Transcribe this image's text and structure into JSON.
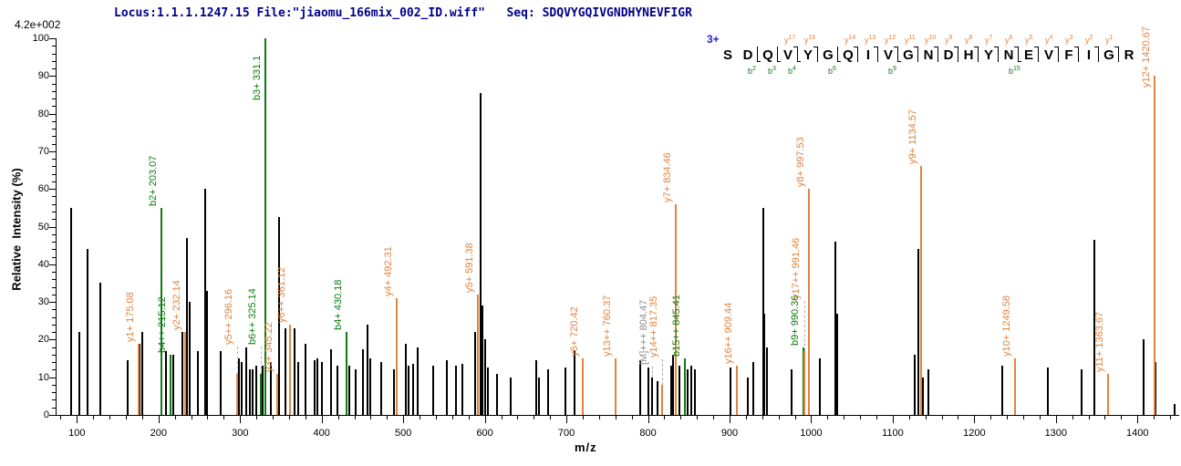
{
  "header": {
    "title_line": "Locus:1.1.1.1247.15 File:\"jiaomu_166mix_002_ID.wiff\"   Seq: SDQVYGQIVGNDHYNEVFIGR",
    "intensity_scale": "4.2e+002"
  },
  "colors": {
    "y_ion": "#E2833E",
    "b_ion": "#0E7C12",
    "precursor": "#8C8C8C",
    "peak": "#000000",
    "header_text": "#00008B",
    "charge_text": "#2222CC"
  },
  "sequence_ladder": {
    "charge": "3+",
    "residues": [
      "S",
      "D",
      "Q",
      "V",
      "Y",
      "G",
      "Q",
      "I",
      "V",
      "G",
      "N",
      "D",
      "H",
      "Y",
      "N",
      "E",
      "V",
      "F",
      "I",
      "G",
      "R"
    ],
    "y_ions": [
      {
        "after": 4,
        "ion": "y",
        "num": "17"
      },
      {
        "after": 5,
        "ion": "y",
        "num": "16"
      },
      {
        "after": 7,
        "ion": "y",
        "num": "14"
      },
      {
        "after": 8,
        "ion": "y",
        "num": "13"
      },
      {
        "after": 9,
        "ion": "y",
        "num": "12"
      },
      {
        "after": 10,
        "ion": "y",
        "num": "11"
      },
      {
        "after": 11,
        "ion": "y",
        "num": "10"
      },
      {
        "after": 12,
        "ion": "y",
        "num": "9"
      },
      {
        "after": 13,
        "ion": "y",
        "num": "8"
      },
      {
        "after": 14,
        "ion": "y",
        "num": "7"
      },
      {
        "after": 15,
        "ion": "y",
        "num": "6"
      },
      {
        "after": 16,
        "ion": "y",
        "num": "5"
      },
      {
        "after": 17,
        "ion": "y",
        "num": "4"
      },
      {
        "after": 18,
        "ion": "y",
        "num": "3"
      },
      {
        "after": 19,
        "ion": "y",
        "num": "2"
      },
      {
        "after": 20,
        "ion": "y",
        "num": "1"
      }
    ],
    "b_ions": [
      {
        "after": 2,
        "ion": "b",
        "num": "2"
      },
      {
        "after": 3,
        "ion": "b",
        "num": "3"
      },
      {
        "after": 4,
        "ion": "b",
        "num": "4"
      },
      {
        "after": 6,
        "ion": "b",
        "num": "6"
      },
      {
        "after": 9,
        "ion": "b",
        "num": "9"
      },
      {
        "after": 15,
        "ion": "b",
        "num": "15"
      }
    ]
  },
  "chart_data": {
    "type": "bar",
    "title": "MS/MS fragment spectrum",
    "xlabel": "m/z",
    "ylabel": "Relative  Intensity (%)",
    "xlim": [
      75,
      1450
    ],
    "ylim": [
      0,
      100
    ],
    "x_major_ticks": [
      100,
      200,
      300,
      400,
      500,
      600,
      700,
      800,
      900,
      1000,
      1100,
      1200,
      1300,
      1400
    ],
    "x_minor_step": 20,
    "y_major_ticks": [
      0,
      10,
      20,
      30,
      40,
      50,
      60,
      70,
      80,
      90,
      100
    ],
    "y_minor_step": 2,
    "annotated_peaks": [
      {
        "label": "y1+ 175.08",
        "mz": 175.08,
        "intensity": 19,
        "series": "y",
        "leader": 0,
        "drop": 0
      },
      {
        "label": "b2+ 203.07",
        "mz": 203.07,
        "intensity": 55,
        "series": "b",
        "leader": 0,
        "drop": 0
      },
      {
        "label": "b4++ 215.12",
        "mz": 215.12,
        "intensity": 16,
        "series": "b",
        "leader": 0,
        "drop": 0
      },
      {
        "label": "y2+ 232.14",
        "mz": 232.14,
        "intensity": 22,
        "series": "y",
        "leader": 0,
        "drop": 0
      },
      {
        "label": "y5++ 296.16",
        "mz": 296.16,
        "intensity": 11,
        "series": "y",
        "leader": 30,
        "drop": 0
      },
      {
        "label": "b6++ 325.14",
        "mz": 325.14,
        "intensity": 11,
        "series": "b",
        "leader": 30,
        "drop": 0
      },
      {
        "label": "b3+ 331.1",
        "mz": 331.1,
        "intensity": 100,
        "series": "b",
        "leader": 0,
        "drop": 70
      },
      {
        "label": "y3+ 345.22",
        "mz": 345.22,
        "intensity": 11,
        "series": "y",
        "leader": 0,
        "drop": 0
      },
      {
        "label": "y6++ 361.12",
        "mz": 361.12,
        "intensity": 24,
        "series": "y",
        "leader": 0,
        "drop": 0
      },
      {
        "label": "b4+ 430.18",
        "mz": 430.18,
        "intensity": 22,
        "series": "b",
        "leader": 0,
        "drop": 0
      },
      {
        "label": "y4+ 492.31",
        "mz": 492.31,
        "intensity": 31,
        "series": "y",
        "leader": 0,
        "drop": 0
      },
      {
        "label": "y5+ 591.38",
        "mz": 591.38,
        "intensity": 32,
        "series": "y",
        "leader": 0,
        "drop": 0
      },
      {
        "label": "y6+ 720.42",
        "mz": 720.42,
        "intensity": 15,
        "series": "y",
        "leader": 0,
        "drop": 0
      },
      {
        "label": "y13++ 760.37",
        "mz": 760.37,
        "intensity": 15,
        "series": "y",
        "leader": 0,
        "drop": 0
      },
      {
        "label": "[M]+++ 804.47",
        "mz": 804.47,
        "intensity": 10,
        "series": "m",
        "leader": 12,
        "drop": 0
      },
      {
        "label": "y14++ 817.35",
        "mz": 817.35,
        "intensity": 8,
        "series": "y",
        "leader": 28,
        "drop": 0
      },
      {
        "label": "y7+ 834.46",
        "mz": 834.46,
        "intensity": 56,
        "series": "y",
        "leader": 0,
        "drop": 0
      },
      {
        "label": "b15++ 845.41",
        "mz": 845.41,
        "intensity": 15,
        "series": "b",
        "leader": 0,
        "drop": 0
      },
      {
        "label": "y16++ 909.44",
        "mz": 909.44,
        "intensity": 13,
        "series": "y",
        "leader": 0,
        "drop": 0
      },
      {
        "label": "b9+ 990.36",
        "mz": 990.36,
        "intensity": 18,
        "series": "b",
        "leader": 0,
        "drop": 0
      },
      {
        "label": "y17++ 991.46",
        "mz": 991.46,
        "intensity": 17,
        "series": "y",
        "leader": 55,
        "drop": 0
      },
      {
        "label": "y8+ 997.53",
        "mz": 997.53,
        "intensity": 60,
        "series": "y",
        "leader": 0,
        "drop": 0
      },
      {
        "label": "y9+ 1134.57",
        "mz": 1134.57,
        "intensity": 66,
        "series": "y",
        "leader": 0,
        "drop": 0
      },
      {
        "label": "y10+ 1249.58",
        "mz": 1249.58,
        "intensity": 15,
        "series": "y",
        "leader": 0,
        "drop": 0
      },
      {
        "label": "y11+ 1363.67",
        "mz": 1363.67,
        "intensity": 11,
        "series": "y",
        "leader": 0,
        "drop": 0
      },
      {
        "label": "y12+ 1420.67",
        "mz": 1420.67,
        "intensity": 90,
        "series": "y",
        "leader": 0,
        "drop": 15
      }
    ],
    "background_peaks": [
      [
        93,
        55
      ],
      [
        103,
        22
      ],
      [
        113,
        44
      ],
      [
        129,
        35
      ],
      [
        162,
        14.5
      ],
      [
        177,
        19
      ],
      [
        180,
        22
      ],
      [
        209,
        17
      ],
      [
        218,
        16
      ],
      [
        229,
        22
      ],
      [
        235,
        47
      ],
      [
        238,
        30
      ],
      [
        248,
        17
      ],
      [
        257,
        60
      ],
      [
        259.5,
        33
      ],
      [
        276,
        17
      ],
      [
        299,
        15
      ],
      [
        302,
        14
      ],
      [
        308,
        18
      ],
      [
        312,
        12
      ],
      [
        315,
        12
      ],
      [
        320,
        13
      ],
      [
        328,
        13
      ],
      [
        338,
        14
      ],
      [
        348,
        52.5
      ],
      [
        356,
        23
      ],
      [
        367,
        23
      ],
      [
        371,
        14
      ],
      [
        380,
        19
      ],
      [
        391,
        14.5
      ],
      [
        395,
        15
      ],
      [
        400,
        14
      ],
      [
        412,
        17.5
      ],
      [
        419,
        13
      ],
      [
        434,
        13
      ],
      [
        442,
        12
      ],
      [
        451,
        17.5
      ],
      [
        456,
        24
      ],
      [
        459,
        15
      ],
      [
        473,
        14
      ],
      [
        489,
        12
      ],
      [
        503,
        19
      ],
      [
        507,
        13
      ],
      [
        512,
        13.5
      ],
      [
        518,
        18
      ],
      [
        537,
        13
      ],
      [
        554,
        14.5
      ],
      [
        565,
        13
      ],
      [
        572,
        13.5
      ],
      [
        588,
        22
      ],
      [
        594.5,
        85.5
      ],
      [
        597,
        29
      ],
      [
        600,
        20
      ],
      [
        604,
        12.5
      ],
      [
        615,
        11
      ],
      [
        632,
        10
      ],
      [
        663,
        14.5
      ],
      [
        666,
        10
      ],
      [
        677,
        12
      ],
      [
        699,
        12.5
      ],
      [
        710,
        17
      ],
      [
        791,
        14.5
      ],
      [
        800,
        12.5
      ],
      [
        812,
        9
      ],
      [
        829,
        13
      ],
      [
        831,
        16
      ],
      [
        839,
        13
      ],
      [
        849,
        12
      ],
      [
        853,
        13
      ],
      [
        857,
        12
      ],
      [
        901,
        12.5
      ],
      [
        922,
        10
      ],
      [
        929,
        14
      ],
      [
        941,
        55
      ],
      [
        943,
        27
      ],
      [
        945.5,
        18
      ],
      [
        976,
        12
      ],
      [
        1011,
        15
      ],
      [
        1030,
        46
      ],
      [
        1031.5,
        27
      ],
      [
        1127,
        16
      ],
      [
        1131,
        44
      ],
      [
        1137,
        10
      ],
      [
        1144,
        12
      ],
      [
        1234,
        13
      ],
      [
        1290,
        12.5
      ],
      [
        1331,
        12
      ],
      [
        1347,
        46.5
      ],
      [
        1407,
        20
      ],
      [
        1422,
        14
      ],
      [
        1445,
        3
      ]
    ]
  }
}
